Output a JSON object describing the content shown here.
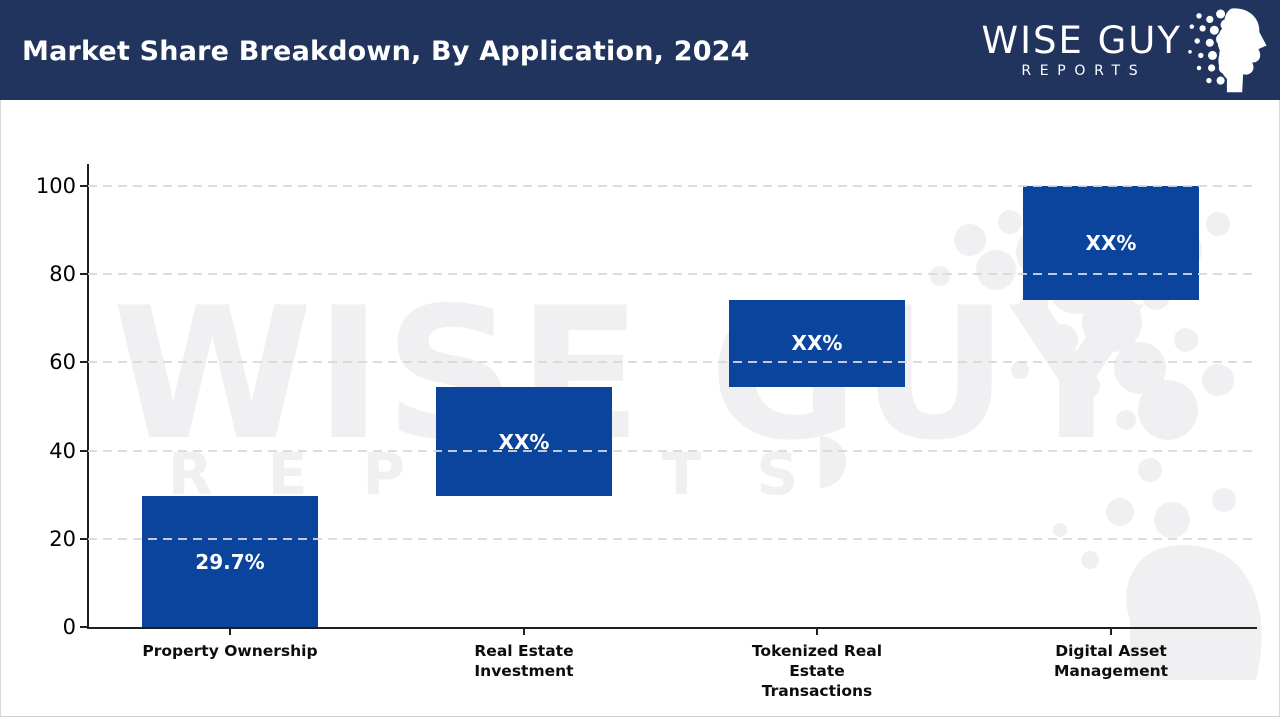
{
  "header": {
    "title": "Market Share Breakdown, By Application, 2024",
    "logo": {
      "line1": "WISE GUY",
      "line2": "REPORTS"
    }
  },
  "watermark": {
    "line1": "WISE GUY",
    "line2": "REPORTS"
  },
  "chart_data": {
    "type": "bar",
    "variant": "floating-segment-waterfall",
    "title": "Market Share Breakdown, By Application, 2024",
    "categories": [
      "Property Ownership",
      "Real Estate Investment",
      "Tokenized Real Estate Transactions",
      "Digital Asset Management"
    ],
    "category_lines": [
      [
        "Property Ownership"
      ],
      [
        "Real Estate",
        "Investment"
      ],
      [
        "Tokenized Real",
        "Estate",
        "Transactions"
      ],
      [
        "Digital Asset",
        "Management"
      ]
    ],
    "segments": [
      {
        "category": "Property Ownership",
        "start": 0,
        "end": 29.7,
        "label": "29.7%"
      },
      {
        "category": "Real Estate Investment",
        "start": 29.7,
        "end": 54.4,
        "label": "XX%"
      },
      {
        "category": "Tokenized Real Estate Transactions",
        "start": 54.4,
        "end": 74.2,
        "label": "XX%"
      },
      {
        "category": "Digital Asset Management",
        "start": 74.2,
        "end": 100,
        "label": "XX%"
      }
    ],
    "yticks": [
      0,
      20,
      40,
      60,
      80,
      100
    ],
    "ylim": [
      0,
      105
    ],
    "xlabel": "",
    "ylabel": "",
    "grid": "dashed-horizontal-over-bars",
    "legend": "none",
    "bar_color": "#0a449c",
    "value_label_color": "#ffffff",
    "header_color": "#20345e"
  }
}
